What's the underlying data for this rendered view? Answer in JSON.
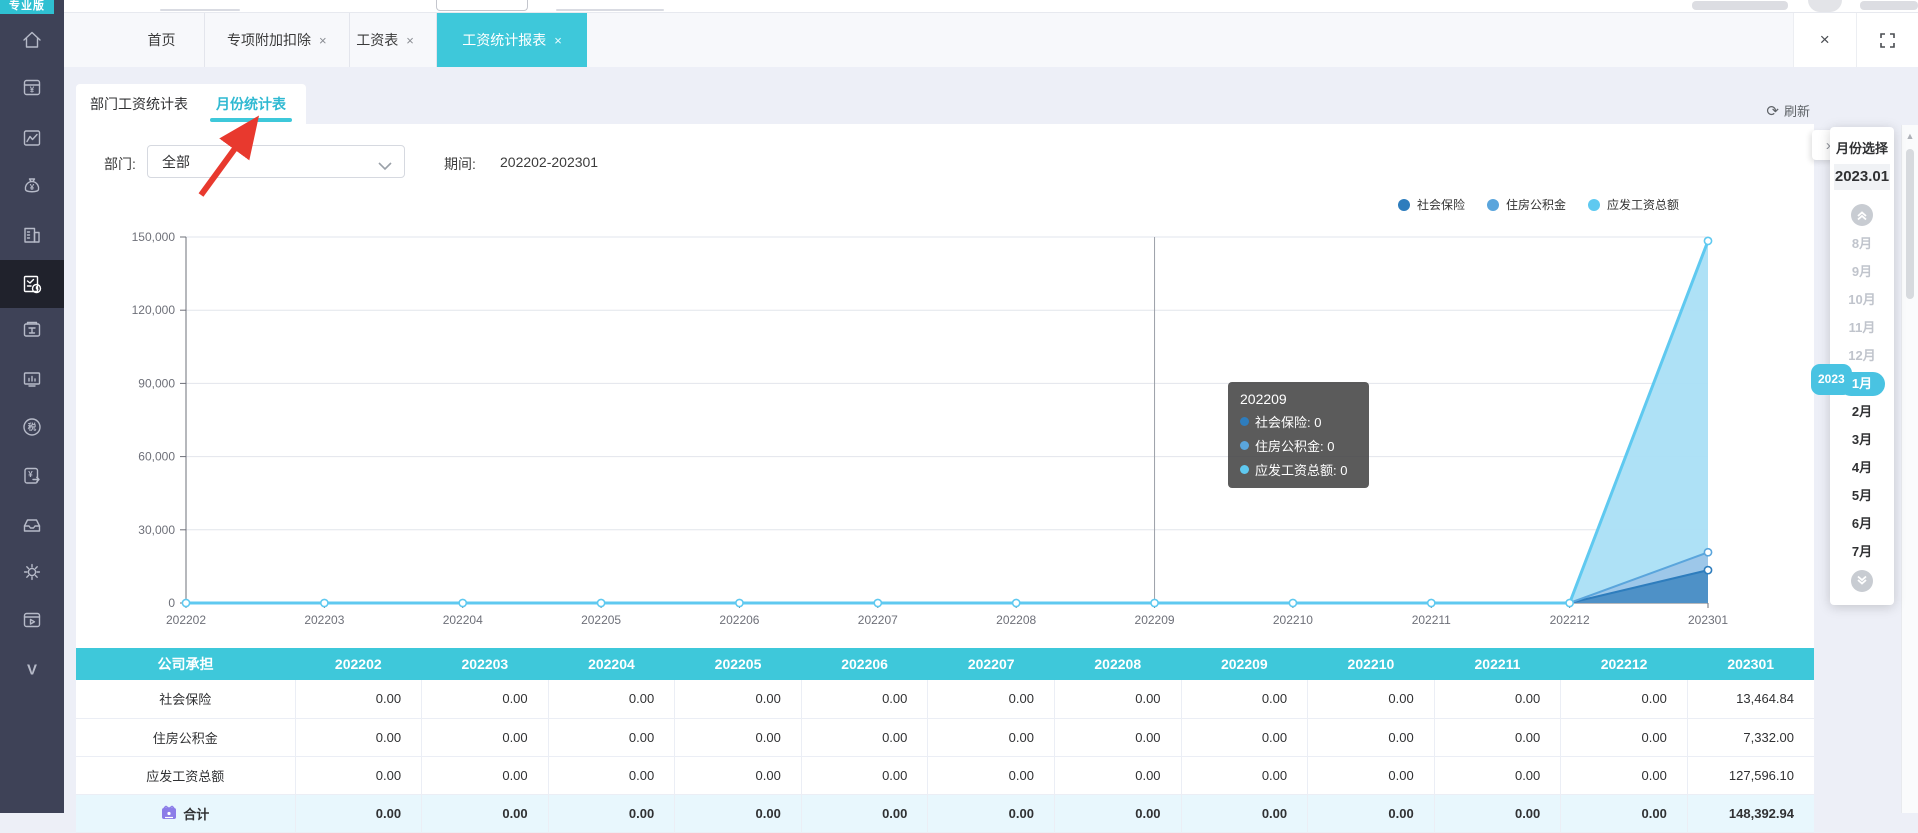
{
  "app": {
    "edition_badge": "专业版",
    "accent": "#3ec8da"
  },
  "icons": {
    "close": "×",
    "fullscreen": "⛶",
    "refresh": "⟳",
    "dropdown": "chevron-down",
    "collapse": "»",
    "scroll_up": "▲"
  },
  "sidebar": {
    "items": [
      "home",
      "voucher",
      "reports",
      "funds",
      "company",
      "salary-report",
      "invoice-print",
      "assets",
      "tax",
      "export",
      "inbox",
      "settings",
      "tutorial",
      "logo-v"
    ],
    "active_index": 5
  },
  "top_tabs": [
    {
      "label": "首页",
      "closable": false,
      "active": false
    },
    {
      "label": "专项附加扣除",
      "closable": true,
      "active": false
    },
    {
      "label": "工资表",
      "closable": true,
      "active": false
    },
    {
      "label": "工资统计报表",
      "closable": true,
      "active": true
    }
  ],
  "sub_tabs": [
    {
      "label": "部门工资统计表",
      "active": false
    },
    {
      "label": "月份统计表",
      "active": true
    }
  ],
  "toolbar": {
    "refresh_label": "刷新"
  },
  "filters": {
    "dept_label": "部门:",
    "dept_value": "全部",
    "period_label": "期间:",
    "period_value": "202202-202301"
  },
  "chart_data": {
    "type": "area",
    "stacked": true,
    "x": [
      "202202",
      "202203",
      "202204",
      "202205",
      "202206",
      "202207",
      "202208",
      "202209",
      "202210",
      "202211",
      "202212",
      "202301"
    ],
    "series": [
      {
        "name": "社会保险",
        "line": "#2e7dbd",
        "fill": "#4a8ec5",
        "values": [
          0,
          0,
          0,
          0,
          0,
          0,
          0,
          0,
          0,
          0,
          0,
          13464.84
        ]
      },
      {
        "name": "住房公积金",
        "line": "#5aa5dc",
        "fill": "#9cc5e8",
        "values": [
          0,
          0,
          0,
          0,
          0,
          0,
          0,
          0,
          0,
          0,
          0,
          7332.0
        ]
      },
      {
        "name": "应发工资总额",
        "line": "#5fc9f0",
        "fill": "#aadff6",
        "values": [
          0,
          0,
          0,
          0,
          0,
          0,
          0,
          0,
          0,
          0,
          0,
          127596.1
        ]
      }
    ],
    "ylim": [
      0,
      150000
    ],
    "yticks": [
      {
        "value": 150000,
        "label": "150,000"
      },
      {
        "value": 120000,
        "label": "120,000"
      },
      {
        "value": 90000,
        "label": "90,000"
      },
      {
        "value": 60000,
        "label": "60,000"
      },
      {
        "value": 30000,
        "label": "30,000"
      },
      {
        "value": 0,
        "label": "0"
      }
    ],
    "grid": true,
    "legend_position": "top-right",
    "hover_category": "202209"
  },
  "tooltip": {
    "title": "202209",
    "rows": [
      {
        "label": "社会保险",
        "value": "0",
        "color": "#2e7dbd"
      },
      {
        "label": "住房公积金",
        "value": "0",
        "color": "#5aa5dc"
      },
      {
        "label": "应发工资总额",
        "value": "0",
        "color": "#5fc9f0"
      }
    ]
  },
  "month_panel": {
    "title": "月份选择",
    "current": "2023.01",
    "year_badge": "2023",
    "months": [
      {
        "label": "8月",
        "state": "disabled"
      },
      {
        "label": "9月",
        "state": "disabled"
      },
      {
        "label": "10月",
        "state": "disabled"
      },
      {
        "label": "11月",
        "state": "disabled"
      },
      {
        "label": "12月",
        "state": "disabled"
      },
      {
        "label": "1月",
        "state": "selected"
      },
      {
        "label": "2月",
        "state": "normal"
      },
      {
        "label": "3月",
        "state": "normal"
      },
      {
        "label": "4月",
        "state": "normal"
      },
      {
        "label": "5月",
        "state": "normal"
      },
      {
        "label": "6月",
        "state": "normal"
      },
      {
        "label": "7月",
        "state": "normal"
      }
    ]
  },
  "table": {
    "header": [
      "公司承担",
      "202202",
      "202203",
      "202204",
      "202205",
      "202206",
      "202207",
      "202208",
      "202209",
      "202210",
      "202211",
      "202212",
      "202301"
    ],
    "rows": [
      {
        "name": "社会保险",
        "values": [
          "0.00",
          "0.00",
          "0.00",
          "0.00",
          "0.00",
          "0.00",
          "0.00",
          "0.00",
          "0.00",
          "0.00",
          "0.00",
          "13,464.84"
        ]
      },
      {
        "name": "住房公积金",
        "values": [
          "0.00",
          "0.00",
          "0.00",
          "0.00",
          "0.00",
          "0.00",
          "0.00",
          "0.00",
          "0.00",
          "0.00",
          "0.00",
          "7,332.00"
        ]
      },
      {
        "name": "应发工资总额",
        "values": [
          "0.00",
          "0.00",
          "0.00",
          "0.00",
          "0.00",
          "0.00",
          "0.00",
          "0.00",
          "0.00",
          "0.00",
          "0.00",
          "127,596.10"
        ]
      }
    ],
    "total_row": {
      "name": "合计",
      "values": [
        "0.00",
        "0.00",
        "0.00",
        "0.00",
        "0.00",
        "0.00",
        "0.00",
        "0.00",
        "0.00",
        "0.00",
        "0.00",
        "148,392.94"
      ]
    }
  }
}
